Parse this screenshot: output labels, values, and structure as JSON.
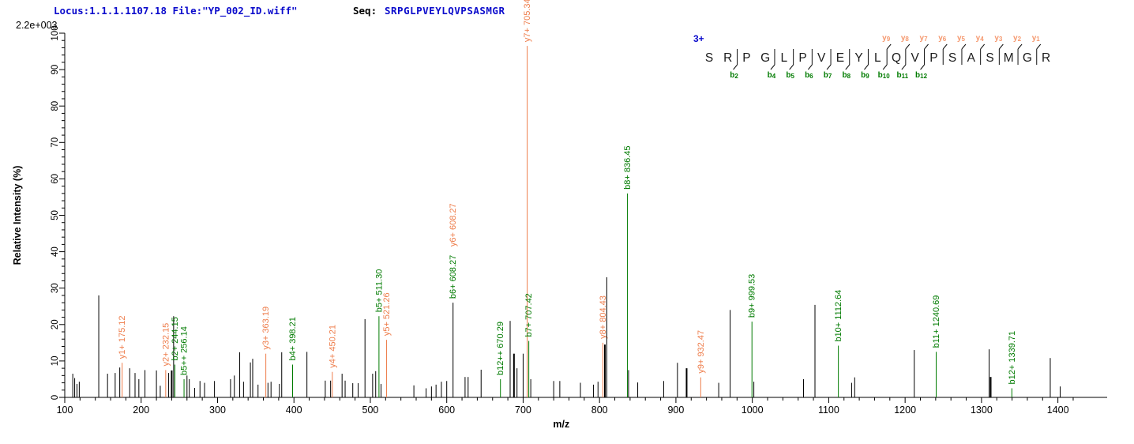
{
  "header": {
    "locus_file": "Locus:1.1.1.1107.18 File:\"YP_002_ID.wiff\"",
    "seq_label": "Seq:",
    "sequence": "SRPGLPVEYLQVPSASMGR"
  },
  "colors": {
    "b_ion_green": "#007b00",
    "y_ion_orange": "#ee7d4b",
    "seq_y_orange": "#f5986e",
    "peak_black": "#000000",
    "header_blue": "#0b0bcc",
    "axis_black": "#000000",
    "residue_gray": "#1c1c1c"
  },
  "chart_data": {
    "type": "bar",
    "title": "",
    "xlabel": "m/z",
    "ylabel": "Relative  Intensity (%)",
    "y_scale_note": "2.2e+003",
    "x_range": [
      100,
      1450
    ],
    "y_range": [
      0,
      100
    ],
    "x_minor_step": 20,
    "y_minor_step": 2,
    "x_tick_labels": [
      100,
      200,
      300,
      400,
      500,
      600,
      700,
      800,
      900,
      1000,
      1100,
      1200,
      1300,
      1400
    ],
    "y_tick_labels": [
      0,
      10,
      20,
      30,
      40,
      50,
      60,
      70,
      80,
      90,
      100
    ],
    "grid": false,
    "peaks": [
      {
        "mz": 110.5,
        "intensity": 6.5
      },
      {
        "mz": 113,
        "intensity": 5.3
      },
      {
        "mz": 116,
        "intensity": 3.7
      },
      {
        "mz": 119,
        "intensity": 4.3
      },
      {
        "mz": 144.5,
        "intensity": 28
      },
      {
        "mz": 156,
        "intensity": 6.5
      },
      {
        "mz": 166,
        "intensity": 6.7
      },
      {
        "mz": 172,
        "intensity": 8.2
      },
      {
        "mz": 175.12,
        "intensity": 9.5,
        "ion": "y",
        "label": "y1+ 175.12"
      },
      {
        "mz": 185,
        "intensity": 8
      },
      {
        "mz": 192,
        "intensity": 6.7
      },
      {
        "mz": 197,
        "intensity": 5
      },
      {
        "mz": 205,
        "intensity": 7.5
      },
      {
        "mz": 220,
        "intensity": 7.4
      },
      {
        "mz": 225,
        "intensity": 3.2
      },
      {
        "mz": 232.15,
        "intensity": 7.5,
        "ion": "y",
        "label": "y2+ 232.15"
      },
      {
        "mz": 236,
        "intensity": 6.7
      },
      {
        "mz": 240,
        "intensity": 7.4,
        "w": 2
      },
      {
        "mz": 242.5,
        "intensity": 22.3
      },
      {
        "mz": 244.15,
        "intensity": 9,
        "ion": "b",
        "label": "b2+ 244.15"
      },
      {
        "mz": 256.14,
        "intensity": 5,
        "ion": "b",
        "label": "b5++ 256.14"
      },
      {
        "mz": 260,
        "intensity": 6
      },
      {
        "mz": 263,
        "intensity": 5
      },
      {
        "mz": 270,
        "intensity": 2.6
      },
      {
        "mz": 277,
        "intensity": 4.5
      },
      {
        "mz": 283,
        "intensity": 4
      },
      {
        "mz": 296,
        "intensity": 4.5
      },
      {
        "mz": 317,
        "intensity": 5
      },
      {
        "mz": 322,
        "intensity": 6
      },
      {
        "mz": 329,
        "intensity": 12.4
      },
      {
        "mz": 334,
        "intensity": 4.3
      },
      {
        "mz": 343,
        "intensity": 9.6
      },
      {
        "mz": 346,
        "intensity": 10.6
      },
      {
        "mz": 353,
        "intensity": 3.5
      },
      {
        "mz": 363.19,
        "intensity": 12,
        "ion": "y",
        "label": "y3+ 363.19"
      },
      {
        "mz": 366,
        "intensity": 4
      },
      {
        "mz": 370,
        "intensity": 4.3
      },
      {
        "mz": 381,
        "intensity": 3.7
      },
      {
        "mz": 384,
        "intensity": 12.4
      },
      {
        "mz": 398.21,
        "intensity": 9,
        "ion": "b",
        "label": "b4+ 398.21"
      },
      {
        "mz": 417,
        "intensity": 12.5
      },
      {
        "mz": 441,
        "intensity": 4.6
      },
      {
        "mz": 448,
        "intensity": 4.6
      },
      {
        "mz": 450.21,
        "intensity": 7,
        "ion": "y",
        "label": "y4+ 450.21"
      },
      {
        "mz": 463,
        "intensity": 6.5
      },
      {
        "mz": 467,
        "intensity": 4.6
      },
      {
        "mz": 477,
        "intensity": 3.9
      },
      {
        "mz": 484,
        "intensity": 3.9
      },
      {
        "mz": 493,
        "intensity": 21.5
      },
      {
        "mz": 503,
        "intensity": 6.5
      },
      {
        "mz": 507,
        "intensity": 7.2
      },
      {
        "mz": 511.3,
        "intensity": 22.3,
        "ion": "b",
        "label": "b5+ 511.30"
      },
      {
        "mz": 514,
        "intensity": 3.7
      },
      {
        "mz": 521.26,
        "intensity": 15.8,
        "ion": "y",
        "label": "y5+ 521.26"
      },
      {
        "mz": 557,
        "intensity": 3.3
      },
      {
        "mz": 573,
        "intensity": 2.5
      },
      {
        "mz": 580,
        "intensity": 3
      },
      {
        "mz": 586,
        "intensity": 3.5
      },
      {
        "mz": 593,
        "intensity": 4.3
      },
      {
        "mz": 600,
        "intensity": 4.5
      },
      {
        "mz": 608.27,
        "intensity": 26,
        "ion": "both",
        "label": "b6+ 608.27",
        "label2": "y6+ 608.27"
      },
      {
        "mz": 624,
        "intensity": 5.6
      },
      {
        "mz": 628,
        "intensity": 5.6
      },
      {
        "mz": 645,
        "intensity": 7.6
      },
      {
        "mz": 670.29,
        "intensity": 5,
        "ion": "b",
        "label": "b12++ 670.29"
      },
      {
        "mz": 683,
        "intensity": 21
      },
      {
        "mz": 688,
        "intensity": 12,
        "w": 2
      },
      {
        "mz": 692,
        "intensity": 8
      },
      {
        "mz": 700,
        "intensity": 12
      },
      {
        "mz": 705.34,
        "intensity": 96.5,
        "ion": "y",
        "label": "y7+ 705.34"
      },
      {
        "mz": 707.42,
        "intensity": 15.5,
        "ion": "b",
        "label": "b7+ 707.42"
      },
      {
        "mz": 710,
        "intensity": 5
      },
      {
        "mz": 740,
        "intensity": 4.5
      },
      {
        "mz": 748,
        "intensity": 4.5
      },
      {
        "mz": 775,
        "intensity": 4
      },
      {
        "mz": 792,
        "intensity": 3.5
      },
      {
        "mz": 798,
        "intensity": 4.3
      },
      {
        "mz": 804.43,
        "intensity": 15,
        "ion": "y",
        "label": "y8+ 804.43"
      },
      {
        "mz": 807,
        "intensity": 14.5,
        "w": 2
      },
      {
        "mz": 809.5,
        "intensity": 33
      },
      {
        "mz": 836.45,
        "intensity": 56,
        "ion": "b",
        "label": "b8+ 836.45"
      },
      {
        "mz": 838,
        "intensity": 7.5
      },
      {
        "mz": 850,
        "intensity": 4.1
      },
      {
        "mz": 884,
        "intensity": 4.5
      },
      {
        "mz": 902,
        "intensity": 9.5
      },
      {
        "mz": 914,
        "intensity": 8,
        "w": 2
      },
      {
        "mz": 932.47,
        "intensity": 5.5,
        "ion": "y",
        "label": "y9+ 932.47"
      },
      {
        "mz": 956,
        "intensity": 4
      },
      {
        "mz": 971,
        "intensity": 24
      },
      {
        "mz": 999.53,
        "intensity": 20.8,
        "ion": "b",
        "label": "b9+ 999.53"
      },
      {
        "mz": 1002,
        "intensity": 4.3
      },
      {
        "mz": 1067,
        "intensity": 5
      },
      {
        "mz": 1082,
        "intensity": 25.4
      },
      {
        "mz": 1112.64,
        "intensity": 14.2,
        "ion": "b",
        "label": "b10+ 1112.64"
      },
      {
        "mz": 1130,
        "intensity": 4
      },
      {
        "mz": 1134,
        "intensity": 5.5
      },
      {
        "mz": 1212,
        "intensity": 13
      },
      {
        "mz": 1240.69,
        "intensity": 12.5,
        "ion": "b",
        "label": "b11+ 1240.69"
      },
      {
        "mz": 1310,
        "intensity": 13.2
      },
      {
        "mz": 1312,
        "intensity": 5.6,
        "w": 2
      },
      {
        "mz": 1339.71,
        "intensity": 2.5,
        "ion": "b",
        "label": "b12+ 1339.71"
      },
      {
        "mz": 1390,
        "intensity": 10.8
      },
      {
        "mz": 1403,
        "intensity": 3
      }
    ]
  },
  "peptide": {
    "charge_label": "3+",
    "residues": [
      "S",
      "R",
      "P",
      "G",
      "L",
      "P",
      "V",
      "E",
      "Y",
      "L",
      "Q",
      "V",
      "P",
      "S",
      "A",
      "S",
      "M",
      "G",
      "R"
    ],
    "cleavages": [
      {
        "after_residue": 2,
        "b_label": "b2"
      },
      {
        "after_residue": 4,
        "b_label": "b4"
      },
      {
        "after_residue": 5,
        "b_label": "b5"
      },
      {
        "after_residue": 6,
        "b_label": "b6"
      },
      {
        "after_residue": 7,
        "b_label": "b7"
      },
      {
        "after_residue": 8,
        "b_label": "b8"
      },
      {
        "after_residue": 9,
        "b_label": "b9"
      },
      {
        "after_residue": 10,
        "b_label": "b10",
        "y_label": "y9"
      },
      {
        "after_residue": 11,
        "b_label": "b11",
        "y_label": "y8"
      },
      {
        "after_residue": 12,
        "b_label": "b12",
        "y_label": "y7"
      },
      {
        "after_residue": 13,
        "y_label": "y6"
      },
      {
        "after_residue": 14,
        "y_label": "y5"
      },
      {
        "after_residue": 15,
        "y_label": "y4"
      },
      {
        "after_residue": 16,
        "y_label": "y3"
      },
      {
        "after_residue": 17,
        "y_label": "y2"
      },
      {
        "after_residue": 18,
        "y_label": "y1"
      }
    ]
  }
}
